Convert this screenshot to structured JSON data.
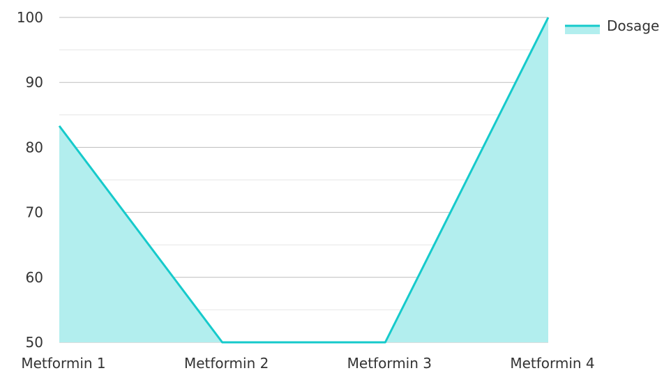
{
  "chart_data": {
    "type": "area",
    "categories": [
      "Metformin 1",
      "Metformin 2",
      "Metformin 3",
      "Metformin 4"
    ],
    "series": [
      {
        "name": "Dosage",
        "values": [
          83.3,
          50,
          50,
          100
        ]
      }
    ],
    "ylim": [
      50,
      100
    ],
    "yticks": [
      50,
      60,
      70,
      80,
      90,
      100
    ],
    "grid": true,
    "legend": "top-right",
    "colors": {
      "line": "#16cacb",
      "fill": "#b2eeee",
      "grid_major": "#bdbdbd",
      "grid_minor": "#e6e6e6",
      "text": "#333333"
    }
  }
}
